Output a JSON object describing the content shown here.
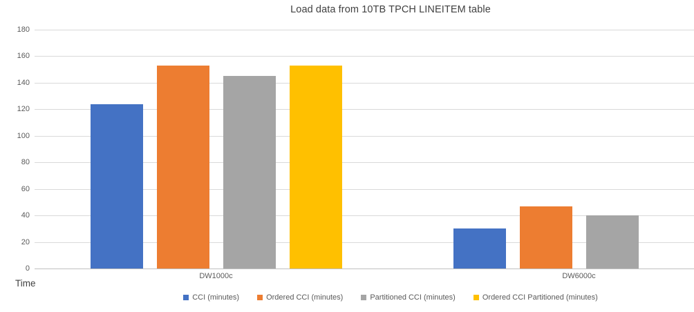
{
  "chart_data": {
    "type": "bar",
    "title": "Load data from 10TB TPCH LINEITEM table",
    "categories": [
      "DW1000c",
      "DW6000c"
    ],
    "series": [
      {
        "name": "CCI (minutes)",
        "color": "#4472c4",
        "values": [
          124,
          30
        ]
      },
      {
        "name": "Ordered CCI (minutes)",
        "color": "#ed7d31",
        "values": [
          153,
          47
        ]
      },
      {
        "name": "Partitioned CCI (minutes)",
        "color": "#a5a5a5",
        "values": [
          145,
          40
        ]
      },
      {
        "name": "Ordered CCI Partitioned (minutes)",
        "color": "#ffc000",
        "values": [
          153,
          null
        ]
      }
    ],
    "xlabel": "Time",
    "ylabel": "",
    "ylim": [
      0,
      180
    ],
    "ytick_step": 20,
    "ytick_labels": [
      "0",
      "20",
      "40",
      "60",
      "80",
      "100",
      "120",
      "140",
      "160",
      "180"
    ],
    "grid": true,
    "legend_position": "bottom",
    "colors": {
      "gridline": "#d9d9d9",
      "axis_line": "#bfbfbf",
      "tick_text": "#595959",
      "title_text": "#404040"
    }
  }
}
